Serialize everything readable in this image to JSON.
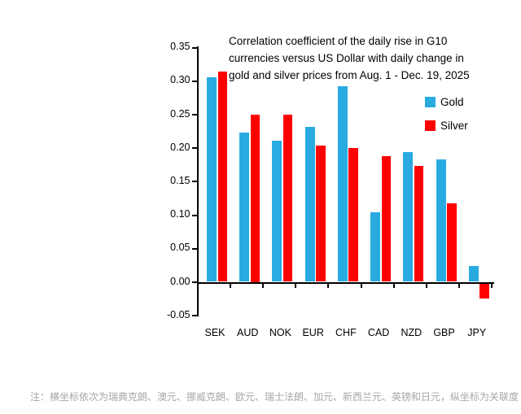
{
  "chart_data": {
    "type": "bar",
    "title": "Correlation coefficient of the daily rise in G10 currencies versus US Dollar with daily change in gold and silver prices from Aug. 1 - Dec. 19, 2025",
    "title_lines": [
      "Correlation coefficient of the daily rise in G10",
      "currencies versus US Dollar with daily change in",
      "gold and silver prices from Aug. 1 - Dec. 19, 2025"
    ],
    "categories": [
      "SEK",
      "AUD",
      "NOK",
      "EUR",
      "CHF",
      "CAD",
      "NZD",
      "GBP",
      "JPY"
    ],
    "series": [
      {
        "name": "Gold",
        "color": "#29ABE2",
        "values": [
          0.305,
          0.223,
          0.21,
          0.231,
          0.292,
          0.104,
          0.193,
          0.183,
          0.024
        ]
      },
      {
        "name": "Silver",
        "color": "#FF0000",
        "values": [
          0.314,
          0.25,
          0.249,
          0.203,
          0.2,
          0.188,
          0.173,
          0.117,
          -0.023
        ]
      }
    ],
    "y_tick_labels": [
      "0.35",
      "0.30",
      "0.25",
      "0.20",
      "0.15",
      "0.10",
      "0.05",
      "0.00",
      "-0.05"
    ],
    "ylim": [
      -0.05,
      0.35
    ],
    "y_tick_step": 0.05,
    "grid": false,
    "legend_position": "top-right",
    "xlabel": "",
    "ylabel": ""
  },
  "note": "注：横坐标依次为瑞典克朗、澳元、挪威克朗、欧元、瑞士法朗、加元、新西兰元、英镑和日元，纵坐标为关联度"
}
